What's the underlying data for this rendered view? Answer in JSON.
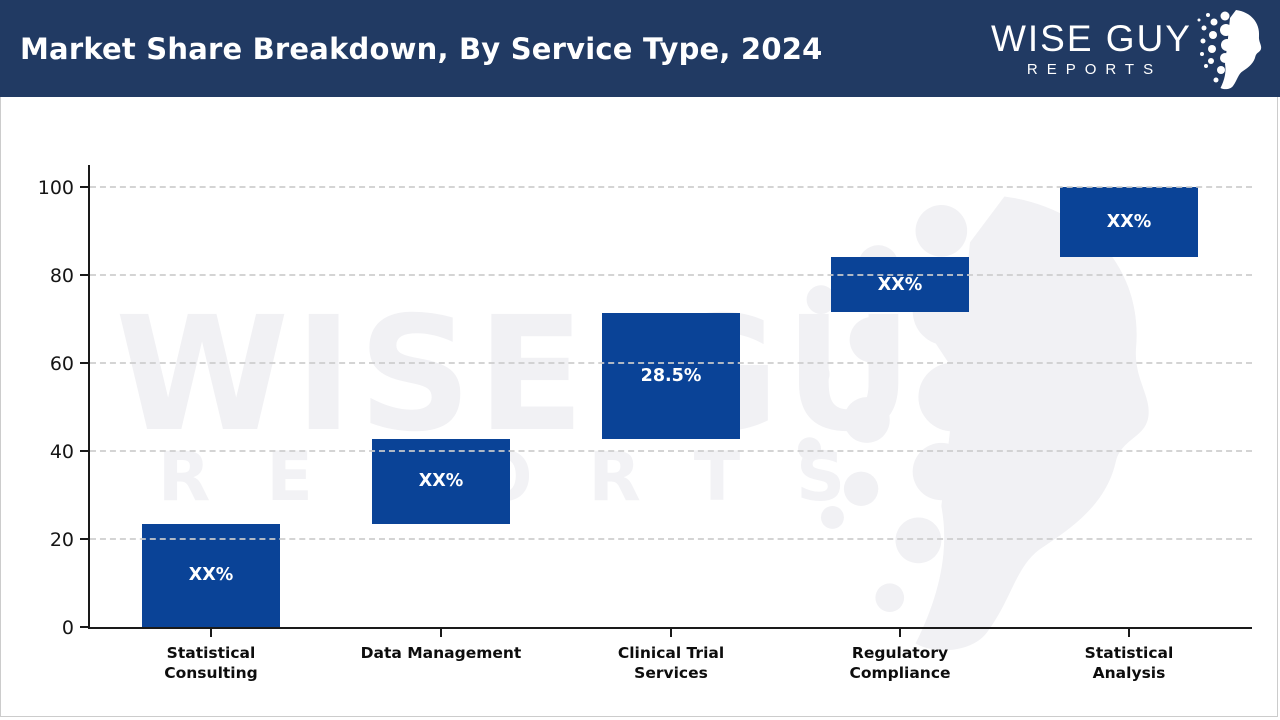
{
  "header": {
    "title": "Market Share Breakdown, By Service Type, 2024",
    "bg_color": "#213A63",
    "logo": {
      "line1": "WISE GUY",
      "line2": "REPORTS"
    }
  },
  "watermark": {
    "line1": "WISE GUY",
    "line2": "REPORTS"
  },
  "chart_data": {
    "type": "bar",
    "subtype": "floating-waterfall-segments",
    "title": "Market Share Breakdown, By Service Type, 2024",
    "categories": [
      "Statistical Consulting",
      "Data Management",
      "Clinical Trial Services",
      "Regulatory Compliance",
      "Statistical Analysis"
    ],
    "segments": [
      {
        "category": "Statistical Consulting",
        "label_lines": [
          "Statistical",
          "Consulting"
        ],
        "start": 0,
        "end": 23.5,
        "value_label": "XX%"
      },
      {
        "category": "Data Management",
        "label_lines": [
          "Data Management"
        ],
        "start": 23.5,
        "end": 42.8,
        "value_label": "XX%"
      },
      {
        "category": "Clinical Trial Services",
        "label_lines": [
          "Clinical Trial",
          "Services"
        ],
        "start": 42.8,
        "end": 71.4,
        "value_label": "28.5%"
      },
      {
        "category": "Regulatory Compliance",
        "label_lines": [
          "Regulatory",
          "Compliance"
        ],
        "start": 71.5,
        "end": 84.1,
        "value_label": "XX%"
      },
      {
        "category": "Statistical Analysis",
        "label_lines": [
          "Statistical",
          "Analysis"
        ],
        "start": 84.2,
        "end": 100,
        "value_label": "XX%"
      }
    ],
    "y_ticks": [
      0,
      20,
      40,
      60,
      80,
      100
    ],
    "ylim": [
      0,
      105
    ],
    "xlabel": "",
    "ylabel": "",
    "legend": "none",
    "grid": {
      "horizontal": true,
      "style": "dashed",
      "color": "#D0D0D0"
    },
    "bar_color": "#0A4397",
    "bar_label_color": "#FFFFFF",
    "axis_color": "#1A1A1A"
  }
}
